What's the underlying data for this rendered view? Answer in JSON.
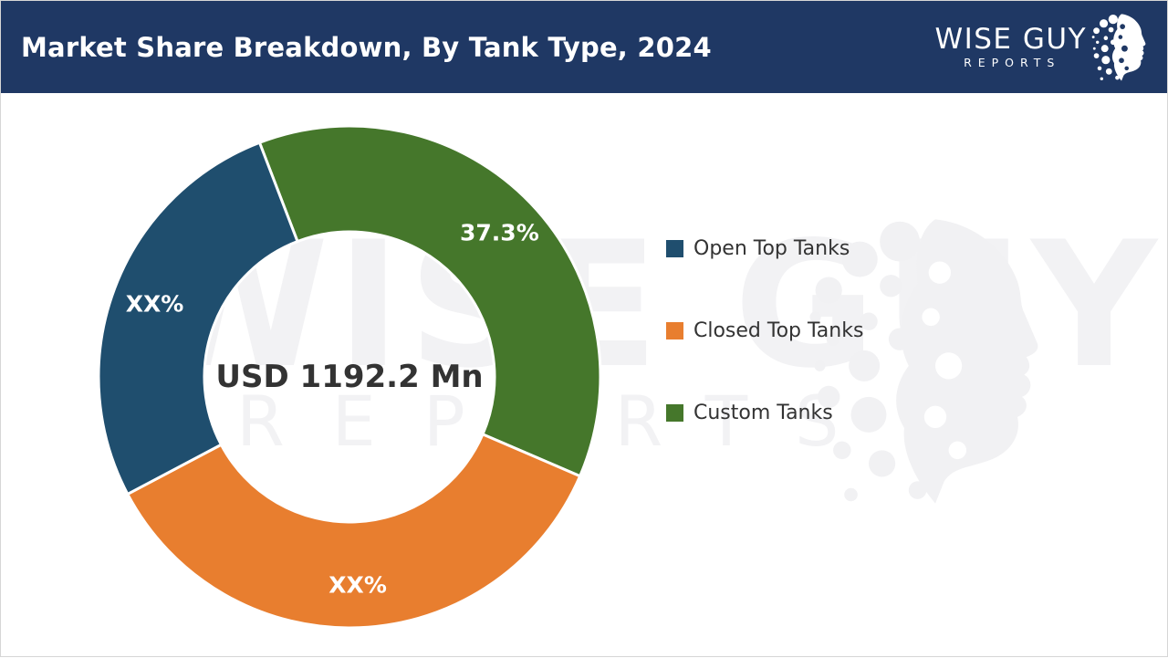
{
  "header": {
    "title": "Market Share Breakdown, By Tank Type, 2024",
    "logo": {
      "line1": "WISE GUY",
      "line2": "REPORTS"
    }
  },
  "watermark": {
    "line1": "WISE GUY",
    "line2": "REPORTS"
  },
  "chart_data": {
    "type": "pie",
    "subtype": "donut",
    "title": "Market Share Breakdown, By Tank Type, 2024",
    "center_label": "USD 1192.2 Mn",
    "year": "2024",
    "start_angle_deg": -21,
    "direction": "clockwise",
    "legend_position": "right",
    "slices": [
      {
        "name": "Custom Tanks",
        "display_label": "37.3%",
        "value_pct": 37.3,
        "color": "#45772B"
      },
      {
        "name": "Closed Top Tanks",
        "display_label": "XX%",
        "value_pct": 35.8,
        "color": "#E87E2F"
      },
      {
        "name": "Open Top Tanks",
        "display_label": "XX%",
        "value_pct": 26.9,
        "color": "#1F4E6E"
      }
    ]
  },
  "legend": {
    "items": [
      {
        "label": "Open Top Tanks",
        "color": "#1F4E6E"
      },
      {
        "label": "Closed Top Tanks",
        "color": "#E87E2F"
      },
      {
        "label": "Custom Tanks",
        "color": "#45772B"
      }
    ]
  },
  "colors": {
    "header_bg": "#1F3864",
    "slice_blue": "#1F4E6E",
    "slice_orange": "#E87E2F",
    "slice_green": "#45772B",
    "text_dark": "#333333",
    "label_text": "#FFFFFF",
    "watermark": "#F2F2F4"
  }
}
